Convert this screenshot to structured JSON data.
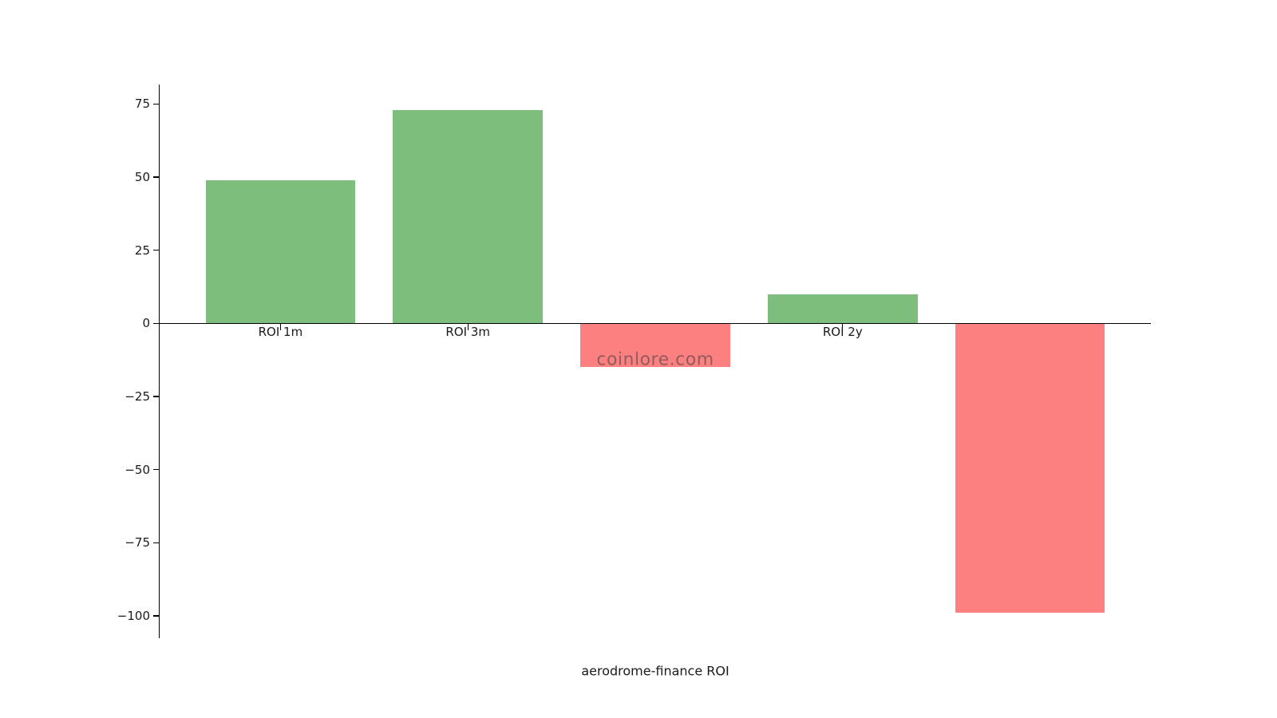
{
  "page": {
    "background": "#ffffff"
  },
  "chart_data": {
    "type": "bar",
    "title": "aerodrome-finance ROI",
    "watermark": "coinlore.com",
    "categories": [
      "ROI 1m",
      "ROI 3m",
      "",
      "ROI 2y",
      ""
    ],
    "values": [
      49,
      73,
      -15,
      10,
      -99
    ],
    "positive_color": "#7dbe7d",
    "negative_color": "#fd8080",
    "axis_color": "#000000",
    "text_color": "#1a1a1a",
    "watermark_color": "rgba(60,60,60,0.55)",
    "y_ticks": [
      75,
      50,
      25,
      0,
      -25,
      -50,
      -75,
      -100
    ],
    "ylim": [
      -107.6,
      81.6
    ],
    "xlim": [
      -0.645,
      4.645
    ],
    "bar_width": 0.8,
    "grid": false,
    "legend": false,
    "xlabel": "aerodrome-finance ROI",
    "ylabel": ""
  }
}
